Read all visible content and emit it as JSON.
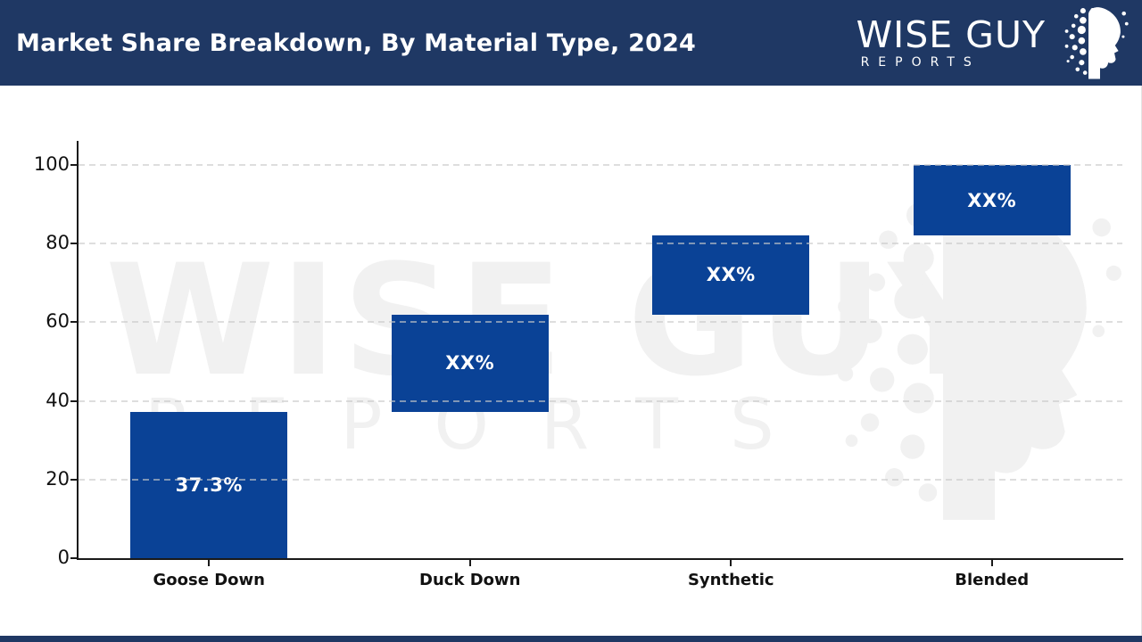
{
  "header": {
    "title": "Market Share Breakdown, By Material Type, 2024",
    "bg_color": "#1f3864",
    "logo": {
      "line1": "WISE GUY",
      "line2": "REPORTS"
    }
  },
  "watermark": {
    "line1": "WISE GUY",
    "line2": "REPORTS",
    "color": "#f1f1f1"
  },
  "chart_data": {
    "type": "bar",
    "subtype": "waterfall",
    "title": "Market Share Breakdown, By Material Type, 2024",
    "categories": [
      "Goose Down",
      "Duck Down",
      "Synthetic",
      "Blended"
    ],
    "segments": [
      {
        "category": "Goose Down",
        "start": 0,
        "end": 37.3,
        "label": "37.3%"
      },
      {
        "category": "Duck Down",
        "start": 37.3,
        "end": 62,
        "label": "XX%"
      },
      {
        "category": "Synthetic",
        "start": 62,
        "end": 82,
        "label": "XX%"
      },
      {
        "category": "Blended",
        "start": 82,
        "end": 100,
        "label": "XX%"
      }
    ],
    "xlabel": "",
    "ylabel": "",
    "ylim": [
      0,
      100
    ],
    "yticks": [
      0,
      20,
      40,
      60,
      80,
      100
    ],
    "grid": "horizontal-dashed, drawn over bars",
    "legend": "none",
    "bar_color": "#0a4296",
    "bar_label_color": "#ffffff",
    "axis_color": "#1a1a1a",
    "grid_color": "#c9c9c9"
  }
}
